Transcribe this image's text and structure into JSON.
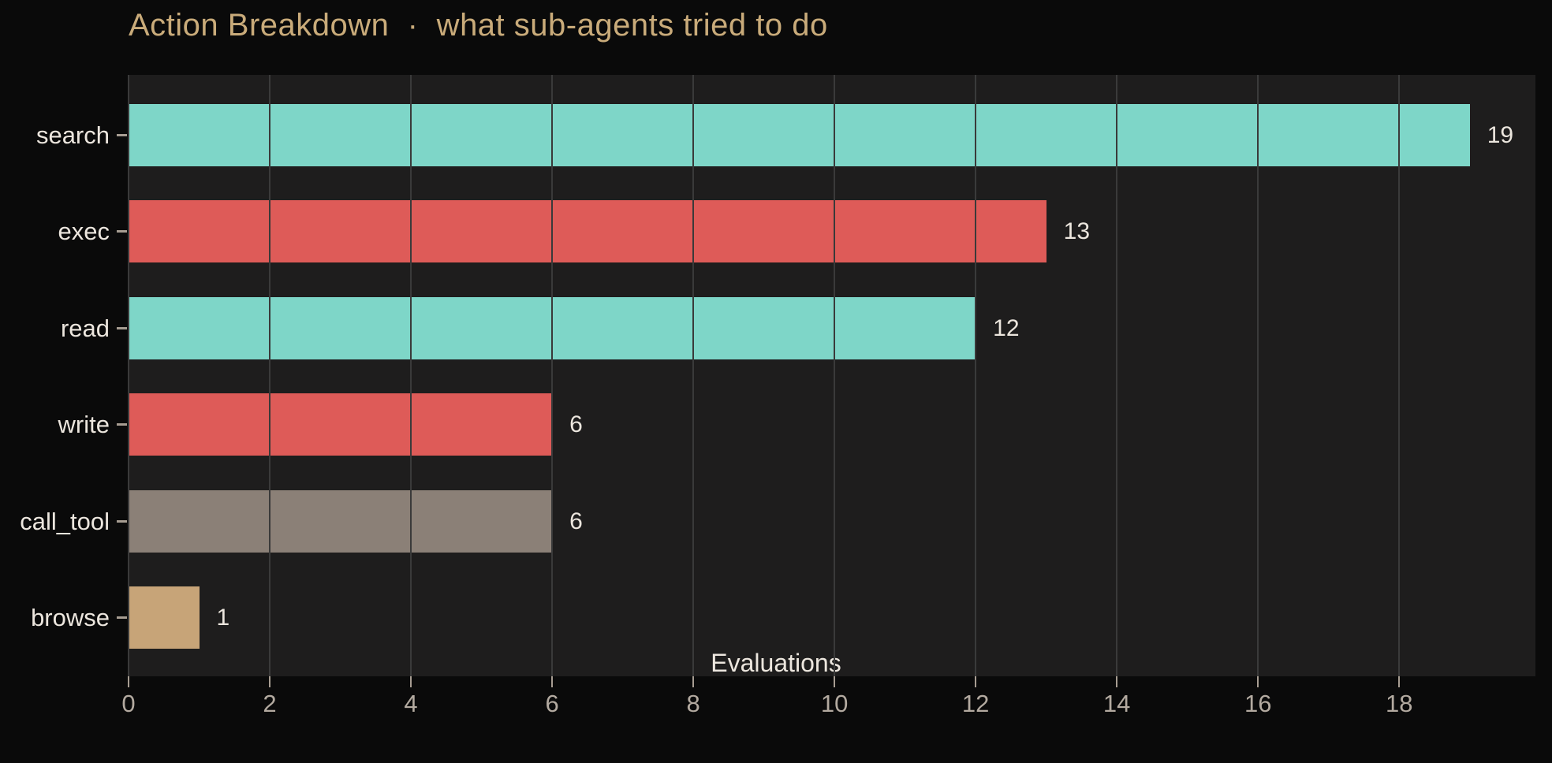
{
  "title": "Action Breakdown  ·  what sub-agents tried to do",
  "x_axis_label": "Evaluations",
  "chart_data": {
    "type": "bar",
    "orientation": "horizontal",
    "title": "Action Breakdown · what sub-agents tried to do",
    "xlabel": "Evaluations",
    "categories": [
      "search",
      "exec",
      "read",
      "write",
      "call_tool",
      "browse"
    ],
    "values": [
      19,
      13,
      12,
      6,
      6,
      1
    ],
    "value_labels": [
      "19",
      "13",
      "12",
      "6",
      "6",
      "1"
    ],
    "bar_colors": [
      "#7ed6c8",
      "#de5b58",
      "#7ed6c8",
      "#de5b58",
      "#8b8077",
      "#c7a478"
    ],
    "xticks": [
      0,
      2,
      4,
      6,
      8,
      10,
      12,
      14,
      16,
      18
    ],
    "xlim": [
      0,
      19.93
    ],
    "grid": true,
    "legend_position": "none"
  },
  "colors": {
    "page_bg": "#0a0a0a",
    "plot_bg": "#1e1d1d",
    "grid": "#3a3a3a",
    "title": "#c9ab7a",
    "label_text": "#ece6de",
    "tick_text": "#b3aaa0",
    "tick_mark": "#a79d92"
  }
}
